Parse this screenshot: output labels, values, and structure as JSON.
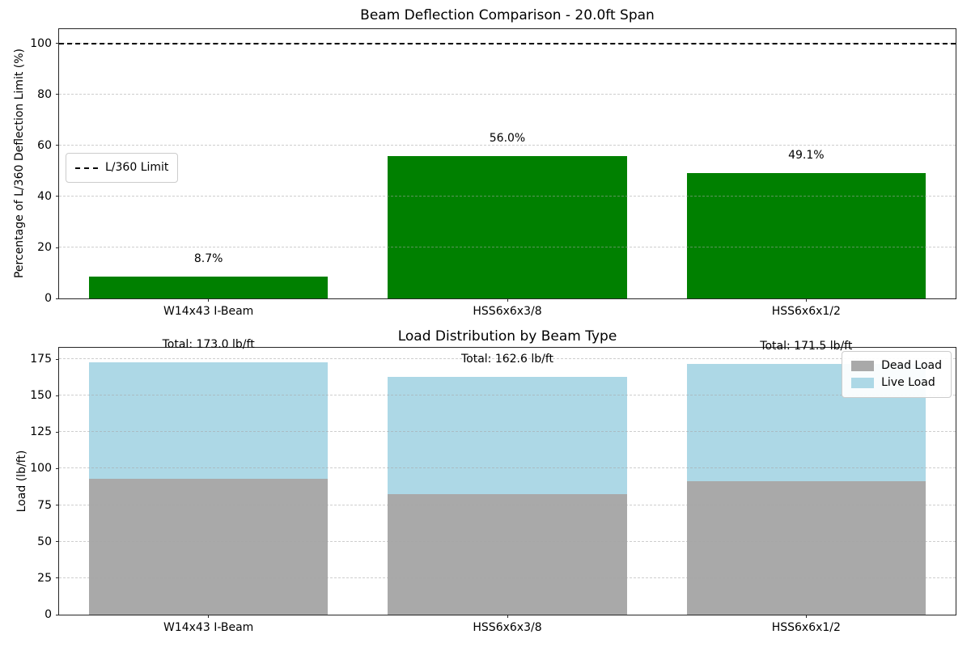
{
  "chart_data": [
    {
      "type": "bar",
      "title": "Beam Deflection Comparison - 20.0ft Span",
      "ylabel": "Percentage of L/360 Deflection Limit (%)",
      "categories": [
        "W14x43 I-Beam",
        "HSS6x6x3/8",
        "HSS6x6x1/2"
      ],
      "values": [
        8.7,
        56.0,
        49.1
      ],
      "bar_labels": [
        "8.7%",
        "56.0%",
        "49.1%"
      ],
      "bar_color": "#008000",
      "yticks": [
        0,
        20,
        40,
        60,
        80,
        100
      ],
      "ylim": [
        0,
        105.7
      ],
      "grid": "horizontal-dashed",
      "reference_line": {
        "value": 100,
        "label": "L/360 Limit",
        "color": "#000000",
        "style": "dashed"
      },
      "legend_position": "left"
    },
    {
      "type": "stacked-bar",
      "title": "Load Distribution by Beam Type",
      "ylabel": "Load (lb/ft)",
      "categories": [
        "W14x43 I-Beam",
        "HSS6x6x3/8",
        "HSS6x6x1/2"
      ],
      "series": [
        {
          "name": "Dead Load",
          "values": [
            93.0,
            82.6,
            91.5
          ],
          "color": "#a9a9a9"
        },
        {
          "name": "Live Load",
          "values": [
            80.0,
            80.0,
            80.0
          ],
          "color": "#add8e6"
        }
      ],
      "totals": [
        "Total: 173.0 lb/ft",
        "Total: 162.6 lb/ft",
        "Total: 171.5 lb/ft"
      ],
      "total_values": [
        173.0,
        162.6,
        171.5
      ],
      "yticks": [
        0,
        25,
        50,
        75,
        100,
        125,
        150,
        175
      ],
      "ylim": [
        0,
        182.8
      ],
      "grid": "horizontal-dashed",
      "legend_position": "top-right"
    }
  ]
}
